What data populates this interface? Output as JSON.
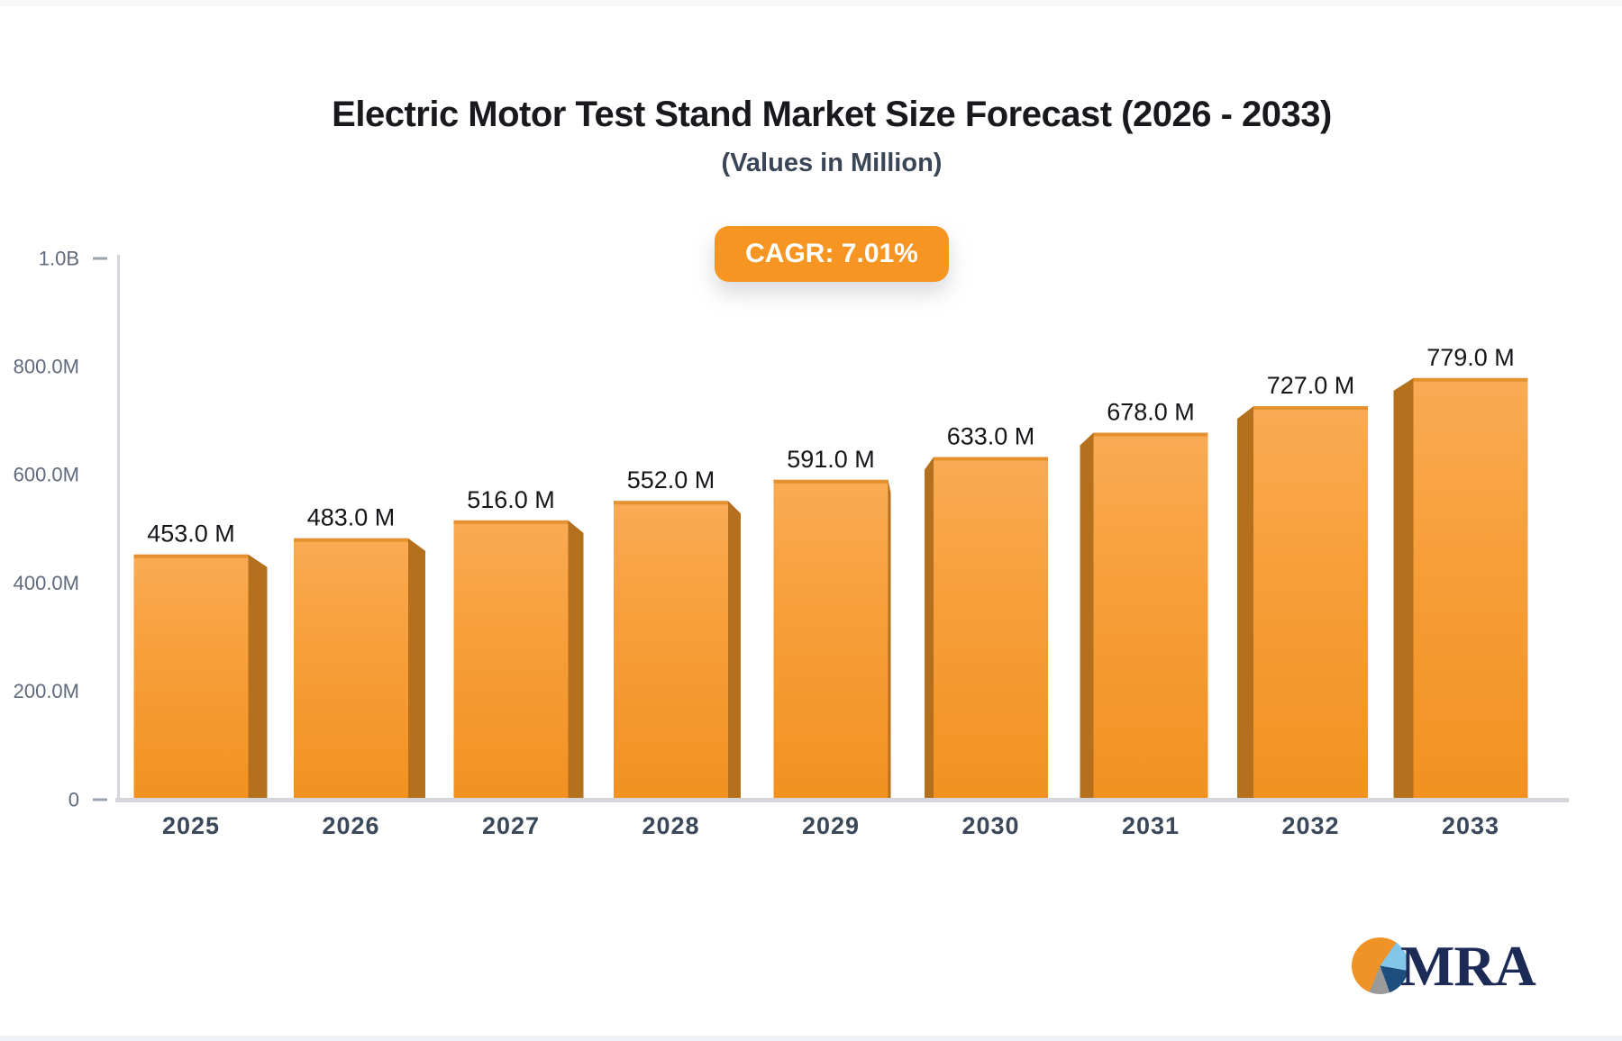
{
  "chart_data": {
    "type": "bar",
    "title": "Electric Motor Test Stand Market Size Forecast (2026 - 2033)",
    "subtitle": "(Values in Million)",
    "annotation": "CAGR: 7.01%",
    "categories": [
      "2025",
      "2026",
      "2027",
      "2028",
      "2029",
      "2030",
      "2031",
      "2032",
      "2033"
    ],
    "values": [
      453,
      483,
      516,
      552,
      591,
      633,
      678,
      727,
      779
    ],
    "value_labels": [
      "453.0 M",
      "483.0 M",
      "516.0 M",
      "552.0 M",
      "591.0 M",
      "633.0 M",
      "678.0 M",
      "727.0 M",
      "779.0 M"
    ],
    "unit": "Million",
    "xlabel": "",
    "ylabel": "",
    "ylim": [
      0,
      1000
    ],
    "grid": false,
    "legend": false,
    "y_ticks": [
      {
        "label": "1.0B",
        "value": 1000
      },
      {
        "label": "800.0M",
        "value": 800
      },
      {
        "label": "600.0M",
        "value": 600
      },
      {
        "label": "400.0M",
        "value": 400
      },
      {
        "label": "200.0M",
        "value": 200
      },
      {
        "label": "0",
        "value": 0
      }
    ]
  },
  "colors": {
    "bar_face_top": "#f9ab54",
    "bar_face_mid": "#f79f3b",
    "bar_face_bottom": "#f29120",
    "bar_top_edge": "#e59130",
    "bar_side": "#b4701d",
    "badge_bg": "#f79522",
    "badge_text": "#ffffff",
    "axis_line": "#d4d6dc",
    "tick_dash": "#9aa2ae",
    "logo_navy": "#1c2b56",
    "logo_orange": "#ef9227",
    "logo_light_blue": "#82c6e9",
    "logo_dark_blue": "#1d4e7e",
    "logo_gray": "#9a9a9a"
  },
  "logo": {
    "text": "MRA"
  }
}
